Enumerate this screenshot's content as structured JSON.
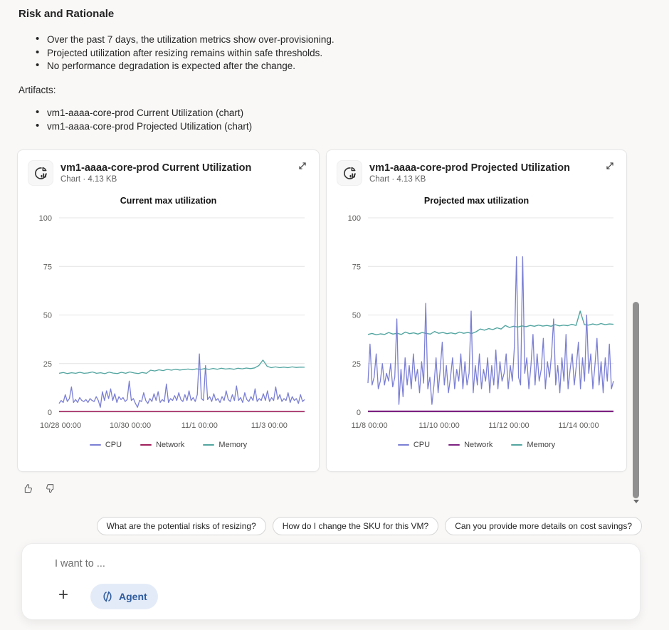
{
  "rationale": {
    "heading": "Risk and Rationale",
    "bullets": [
      "Over the past 7 days, the utilization metrics show over-provisioning.",
      "Projected utilization after resizing remains within safe thresholds.",
      "No performance degradation is expected after the change."
    ],
    "artifacts_label": "Artifacts:",
    "artifacts": [
      "vm1-aaaa-core-prod Current Utilization (chart)",
      "vm1-aaaa-core-prod Projected Utilization (chart)"
    ]
  },
  "cards": [
    {
      "title": "vm1-aaaa-core-prod Current Utilization",
      "meta": "Chart · 4.13 KB"
    },
    {
      "title": "vm1-aaaa-core-prod Projected Utilization",
      "meta": "Chart · 4.13 KB"
    }
  ],
  "chart_data": [
    {
      "type": "line",
      "title": "Current max utilization",
      "ylim": [
        0,
        100
      ],
      "y_ticks": [
        0,
        25,
        50,
        75,
        100
      ],
      "grid": true,
      "legend_position": "bottom",
      "x_ticks": [
        {
          "label": "10/28 00:00",
          "f": 0.006
        },
        {
          "label": "10/30 00:00",
          "f": 0.29
        },
        {
          "label": "11/1 00:00",
          "f": 0.572
        },
        {
          "label": "11/3 00:00",
          "f": 0.856
        }
      ],
      "series": [
        {
          "name": "CPU",
          "color": "#7b7fd4",
          "width": 1.3,
          "values": [
            4.5,
            6,
            5,
            9,
            5.5,
            7,
            13,
            5,
            6.5,
            5,
            7.5,
            6,
            5.5,
            6.5,
            5,
            7,
            6,
            5.5,
            8,
            6,
            2.5,
            10.5,
            6,
            11,
            7,
            12,
            6,
            9.5,
            5,
            8,
            6.5,
            7.5,
            5.5,
            6.5,
            16,
            6,
            7,
            4.5,
            2.5,
            6,
            5.5,
            10,
            6,
            4.5,
            7,
            5.5,
            9.5,
            6,
            10.5,
            5,
            6.5,
            5.5,
            14.5,
            5,
            7,
            6,
            8.5,
            6,
            10,
            6.5,
            5.5,
            9,
            6,
            11,
            6,
            7.5,
            5.5,
            9,
            30,
            7,
            6,
            24,
            6.5,
            8,
            5.5,
            9.5,
            6,
            7,
            5,
            8,
            6,
            11,
            6.5,
            5.5,
            9,
            6,
            13.5,
            6,
            7.5,
            5,
            10,
            6.5,
            5.5,
            8,
            6,
            12,
            5.5,
            7,
            6,
            9.5,
            6,
            11,
            5.5,
            7.5,
            6,
            13,
            6.5,
            9,
            5.5,
            7,
            6,
            10,
            5,
            8,
            6,
            7,
            4.5,
            9,
            5.5,
            6.5
          ]
        },
        {
          "name": "Network",
          "color": "#a01f5c",
          "width": 1.6,
          "values": [
            0.4,
            0.4
          ]
        },
        {
          "name": "Memory",
          "color": "#52a5a0",
          "width": 1.3,
          "values": [
            20,
            20.4,
            19.9,
            20.3,
            20,
            20.5,
            20,
            20.2,
            20.7,
            20,
            20.3,
            19.8,
            20.6,
            20.1,
            19.9,
            20.5,
            20,
            20.7,
            20.2,
            19.9,
            20.4,
            20,
            21.6,
            21.2,
            21.8,
            21.4,
            22,
            21.6,
            22.1,
            21.7,
            21.9,
            22.2,
            21.8,
            22.3,
            22,
            22.4,
            22,
            22.5,
            22.1,
            22.6,
            22.2,
            22.4,
            22.1,
            22.6,
            22.3,
            22.7,
            22.4,
            22.8,
            24,
            26.8,
            23.6,
            22.9,
            23.3,
            22.9,
            23.2,
            22.9,
            23.3,
            23,
            23.2,
            23.1
          ]
        }
      ]
    },
    {
      "type": "line",
      "title": "Projected max utilization",
      "ylim": [
        0,
        100
      ],
      "y_ticks": [
        0,
        25,
        50,
        75,
        100
      ],
      "grid": true,
      "legend_position": "bottom",
      "x_ticks": [
        {
          "label": "11/8 00:00",
          "f": 0.006
        },
        {
          "label": "11/10 00:00",
          "f": 0.29
        },
        {
          "label": "11/12 00:00",
          "f": 0.574
        },
        {
          "label": "11/14 00:00",
          "f": 0.858
        }
      ],
      "series": [
        {
          "name": "CPU",
          "color": "#7b7fd4",
          "width": 1.3,
          "values": [
            15,
            35,
            14,
            18,
            30,
            12,
            16,
            25,
            14,
            20,
            16,
            25,
            13,
            18,
            48,
            4,
            22,
            8,
            28,
            14,
            24,
            12,
            30,
            16,
            22,
            10,
            26,
            15,
            56,
            12,
            18,
            4,
            14,
            28,
            10,
            22,
            36,
            14,
            24,
            10,
            18,
            28,
            12,
            22,
            16,
            30,
            12,
            26,
            14,
            20,
            52,
            10,
            24,
            14,
            30,
            12,
            22,
            16,
            28,
            10,
            24,
            14,
            32,
            12,
            26,
            16,
            20,
            30,
            12,
            24,
            16,
            34,
            80,
            18,
            14,
            80,
            20,
            28,
            12,
            24,
            40,
            14,
            30,
            16,
            22,
            38,
            12,
            26,
            18,
            30,
            48,
            14,
            24,
            10,
            28,
            16,
            40,
            12,
            22,
            30,
            14,
            24,
            36,
            12,
            28,
            16,
            50,
            20,
            30,
            12,
            24,
            38,
            14,
            26,
            10,
            28,
            16,
            35,
            12,
            16
          ]
        },
        {
          "name": "Network",
          "color": "#7d2282",
          "width": 2.2,
          "values": [
            0.4,
            0.4
          ]
        },
        {
          "name": "Memory",
          "color": "#52a5a0",
          "width": 1.4,
          "values": [
            40,
            40.5,
            39.8,
            40.3,
            40,
            41,
            40.2,
            40.6,
            40,
            41.2,
            40.4,
            40.8,
            40.2,
            41,
            40.5,
            40.2,
            41.5,
            40.6,
            41,
            40.4,
            40.8,
            40.3,
            41.2,
            40.6,
            41,
            40.5,
            41.4,
            42.8,
            42.2,
            43,
            42.5,
            43.4,
            42.8,
            44.6,
            43.6,
            44.2,
            43.8,
            44.4,
            44,
            44.6,
            44.2,
            44.8,
            44.3,
            44.6,
            44.2,
            45,
            44.4,
            44.8,
            44.5,
            45.2,
            44.6,
            52,
            45,
            44.8,
            45.4,
            44.9,
            45.6,
            45,
            45.4,
            45.2
          ]
        }
      ]
    }
  ],
  "suggestions": [
    "What are the potential risks of resizing?",
    "How do I change the SKU for this VM?",
    "Can you provide more details on cost savings?"
  ],
  "composer": {
    "placeholder": "I want to ...",
    "agent_label": "Agent"
  },
  "colors": {
    "cpu": "#7b7fd4",
    "memory": "#52a5a0",
    "network_current": "#a01f5c",
    "network_projected": "#7d2282",
    "agent_pill_bg": "#e4ebf8",
    "agent_pill_text": "#2f5c9e"
  }
}
